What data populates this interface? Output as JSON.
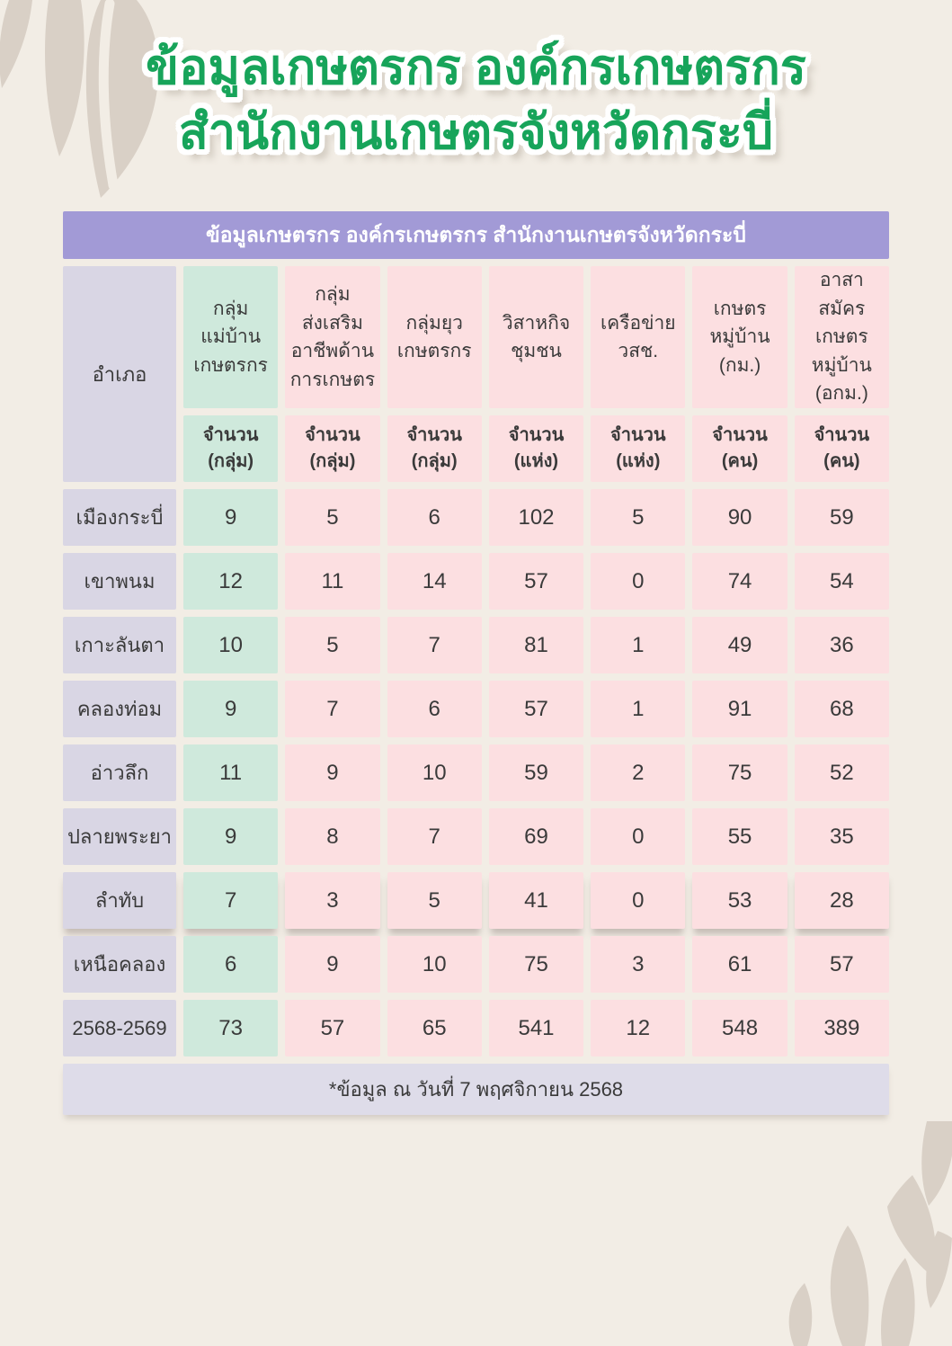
{
  "title": {
    "line1": "ข้อมูลเกษตรกร องค์กรเกษตรกร",
    "line2": "สำนักงานเกษตรจังหวัดกระบี่"
  },
  "table": {
    "header_bar": "ข้อมูลเกษตรกร องค์กรเกษตรกร สำนักงานเกษตรจังหวัดกระบี่",
    "district_column_label": "อำเภอ",
    "columns": [
      {
        "key": "housewife-group",
        "label": "กลุ่ม\nแม่บ้าน\nเกษตรกร",
        "unit": "จำนวน\n(กลุ่ม)",
        "tone": "mint"
      },
      {
        "key": "career-promotion-group",
        "label": "กลุ่ม\nส่งเสริม\nอาชีพด้าน\nการเกษตร",
        "unit": "จำนวน\n(กลุ่ม)",
        "tone": "pink"
      },
      {
        "key": "young-farmer-group",
        "label": "กลุ่มยุว\nเกษตรกร",
        "unit": "จำนวน\n(กลุ่ม)",
        "tone": "pink"
      },
      {
        "key": "community-enterprise",
        "label": "วิสาหกิจ\nชุมชน",
        "unit": "จำนวน\n(แห่ง)",
        "tone": "pink"
      },
      {
        "key": "enterprise-network",
        "label": "เครือข่าย\nวสช.",
        "unit": "จำนวน\n(แห่ง)",
        "tone": "pink"
      },
      {
        "key": "village-farmer",
        "label": "เกษตร\nหมู่บ้าน\n(กม.)",
        "unit": "จำนวน\n(คน)",
        "tone": "pink"
      },
      {
        "key": "village-farmer-volunteer",
        "label": "อาสา\nสมัคร\nเกษตร\nหมู่บ้าน\n(อกม.)",
        "unit": "จำนวน\n(คน)",
        "tone": "pink"
      }
    ],
    "rows": [
      {
        "district": "เมืองกระบี่",
        "values": [
          "9",
          "5",
          "6",
          "102",
          "5",
          "90",
          "59"
        ]
      },
      {
        "district": "เขาพนม",
        "values": [
          "12",
          "11",
          "14",
          "57",
          "0",
          "74",
          "54"
        ]
      },
      {
        "district": "เกาะลันตา",
        "values": [
          "10",
          "5",
          "7",
          "81",
          "1",
          "49",
          "36"
        ]
      },
      {
        "district": "คลองท่อม",
        "values": [
          "9",
          "7",
          "6",
          "57",
          "1",
          "91",
          "68"
        ]
      },
      {
        "district": "อ่าวลึก",
        "values": [
          "11",
          "9",
          "10",
          "59",
          "2",
          "75",
          "52"
        ]
      },
      {
        "district": "ปลายพระยา",
        "values": [
          "9",
          "8",
          "7",
          "69",
          "0",
          "55",
          "35"
        ]
      },
      {
        "district": "ลำทับ",
        "values": [
          "7",
          "3",
          "5",
          "41",
          "0",
          "53",
          "28"
        ]
      },
      {
        "district": "เหนือคลอง",
        "values": [
          "6",
          "9",
          "10",
          "75",
          "3",
          "61",
          "57"
        ]
      },
      {
        "district": "2568-2569",
        "values": [
          "73",
          "57",
          "65",
          "541",
          "12",
          "548",
          "389"
        ]
      }
    ],
    "footnote": "*ข้อมูล ณ วันที่ 7 พฤศจิกายน 2568"
  },
  "colors": {
    "title_green": "#17a45a",
    "header_purple": "#a29ad6",
    "label_lavender": "#d9d6e4",
    "mint": "#cfe9dc",
    "pink": "#fcdfe1",
    "footer_lavender": "#dedce9",
    "background_cream": "#f2ede5",
    "leaf_beige": "#d9d0c6"
  }
}
